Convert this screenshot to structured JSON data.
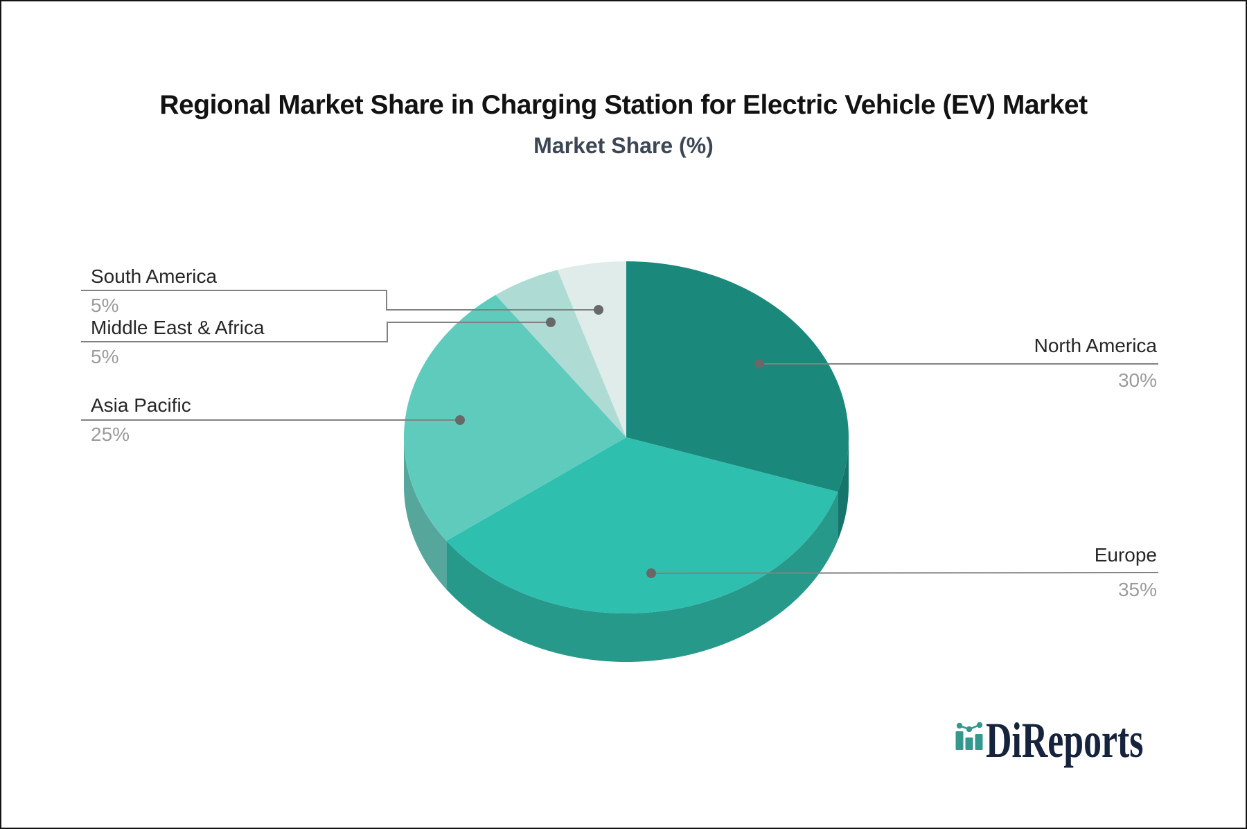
{
  "chart_data": {
    "type": "pie",
    "title": "Regional Market Share in Charging Station for Electric Vehicle (EV) Market",
    "subtitle": "Market Share (%)",
    "unit": "%",
    "direction": "clockwise",
    "start_angle_deg": 0,
    "legend_position": "callout-labels",
    "effect": "3d-depth",
    "slices": [
      {
        "label": "North America",
        "value": 30,
        "value_label": "30%",
        "color": "#1a897c",
        "side_color": "#16756b",
        "callout_side": "right"
      },
      {
        "label": "Europe",
        "value": 35,
        "value_label": "35%",
        "color": "#2fbfae",
        "side_color": "#26998b",
        "callout_side": "right"
      },
      {
        "label": "Asia Pacific",
        "value": 25,
        "value_label": "25%",
        "color": "#5fcbbd",
        "side_color": "#56a69c",
        "callout_side": "left"
      },
      {
        "label": "Middle East & Africa",
        "value": 5,
        "value_label": "5%",
        "color": "#aedcd5",
        "side_color": "#8cc5bd",
        "callout_side": "left"
      },
      {
        "label": "South America",
        "value": 5,
        "value_label": "5%",
        "color": "#dfecea",
        "side_color": "#c5d8d4",
        "callout_side": "left"
      }
    ],
    "leader_style": {
      "line_color": "#818181",
      "dot_color": "#686868"
    }
  },
  "logo": {
    "text": "DiReports",
    "icon": "bar-chart-logo-icon",
    "accent_color": "#35988f",
    "text_color": "#16233c"
  }
}
